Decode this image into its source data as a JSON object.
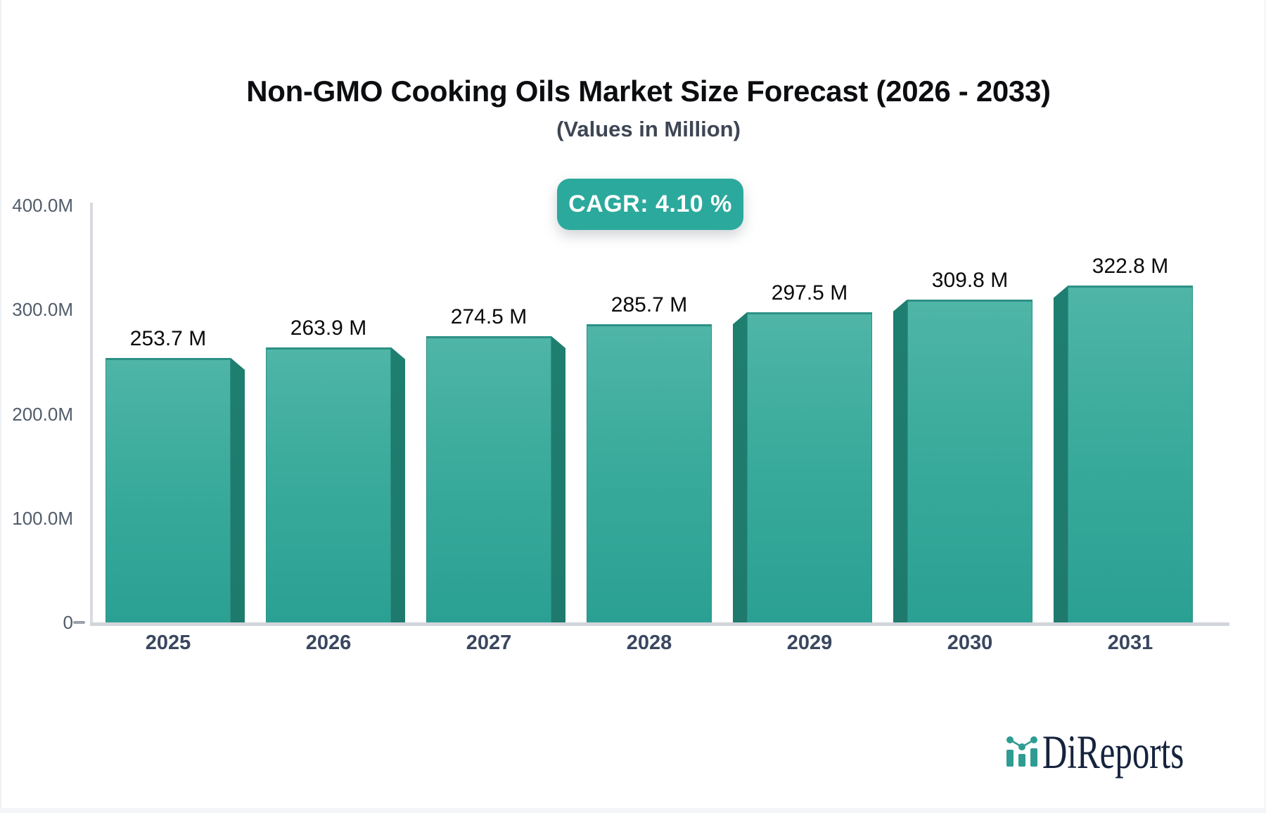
{
  "header": {
    "title": "Non-GMO Cooking Oils Market Size Forecast (2026 - 2033)",
    "subtitle": "(Values in Million)"
  },
  "badge": {
    "label": "CAGR: 4.10 %",
    "background_color": "#2BA99C",
    "text_color": "#FFFFFF"
  },
  "chart_data": {
    "type": "bar",
    "title": "Non-GMO Cooking Oils Market Size Forecast (2026 - 2033)",
    "subtitle": "(Values in Million)",
    "unit": "Million",
    "cagr_label": "CAGR: 4.10 %",
    "categories": [
      "2025",
      "2026",
      "2027",
      "2028",
      "2029",
      "2030",
      "2031"
    ],
    "values": [
      253.7,
      263.9,
      274.5,
      285.7,
      297.5,
      309.8,
      322.8
    ],
    "value_labels": [
      "253.7 M",
      "263.9 M",
      "274.5 M",
      "285.7 M",
      "297.5 M",
      "309.8 M",
      "322.8 M"
    ],
    "ylim": [
      0,
      400
    ],
    "ytick_values": [
      400,
      300,
      200,
      100,
      0
    ],
    "ytick_labels": [
      "400.0M",
      "300.0M",
      "200.0M",
      "100.0M",
      "0"
    ],
    "grid": false,
    "legend": "none",
    "style": "3d-perspective-toward-center",
    "bar_face_color_top": "#4FB5A7",
    "bar_face_color_bottom": "#2AA093",
    "bar_side_color": "#1E7A6C",
    "axis_color": "#D2D5DA",
    "label_color": "#0A0A0A"
  },
  "logo": {
    "brand": "DiReports",
    "icon": "mini-bar-chart-trend-icon",
    "icon_color": "#2E9C93",
    "text_color": "#16233D"
  }
}
